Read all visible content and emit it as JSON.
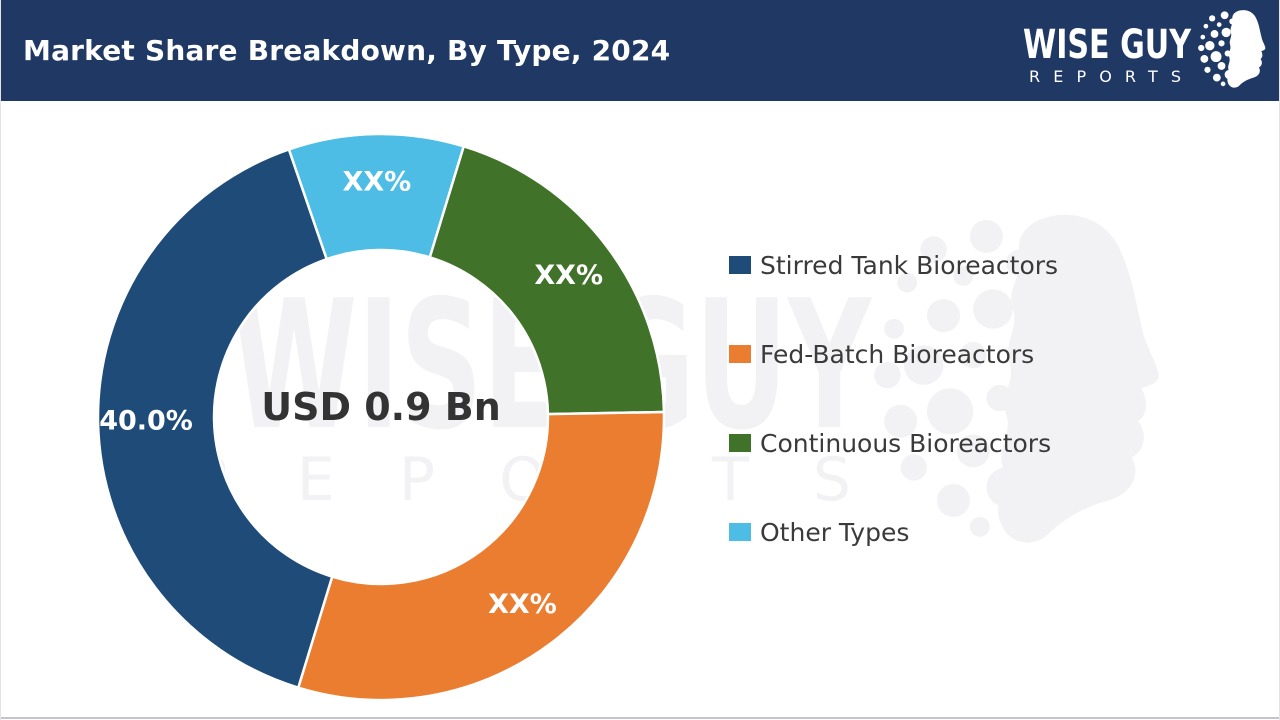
{
  "header": {
    "title": "Market Share Breakdown, By Type, 2024",
    "logo": {
      "wordmark": "WISE GUY",
      "tagline": "REPORTS"
    }
  },
  "chart_data": {
    "type": "pie",
    "subtype": "donut",
    "title": "Market Share Breakdown, By Type, 2024",
    "center_label": "USD 0.9 Bn",
    "categories": [
      "Stirred Tank Bioreactors",
      "Fed-Batch Bioreactors",
      "Continuous Bioreactors",
      "Other Types"
    ],
    "values": [
      40,
      30,
      20,
      10
    ],
    "slice_labels": [
      "40.0%",
      "XX%",
      "XX%",
      "XX%"
    ],
    "colors": [
      "#1E4B78",
      "#EB7D30",
      "#41722A",
      "#4DBDE6"
    ],
    "inner_radius_ratio": 0.59,
    "start_angle_deg_from_top": -19,
    "slice_label_color": "#ffffff",
    "legend_position": "right",
    "grid": false
  },
  "watermark": {
    "wordmark": "WISE GUY",
    "tagline": "REPORTS"
  },
  "colors": {
    "header_bg": "#1F3864",
    "title_text": "#FFFFFF",
    "body_bg": "#FFFFFF",
    "legend_text": "#3A3A3A",
    "center_text": "#333333",
    "watermark": "#F2F2F4",
    "divider": "#C4C4CA",
    "slice_stroke": "#FFFFFF"
  }
}
